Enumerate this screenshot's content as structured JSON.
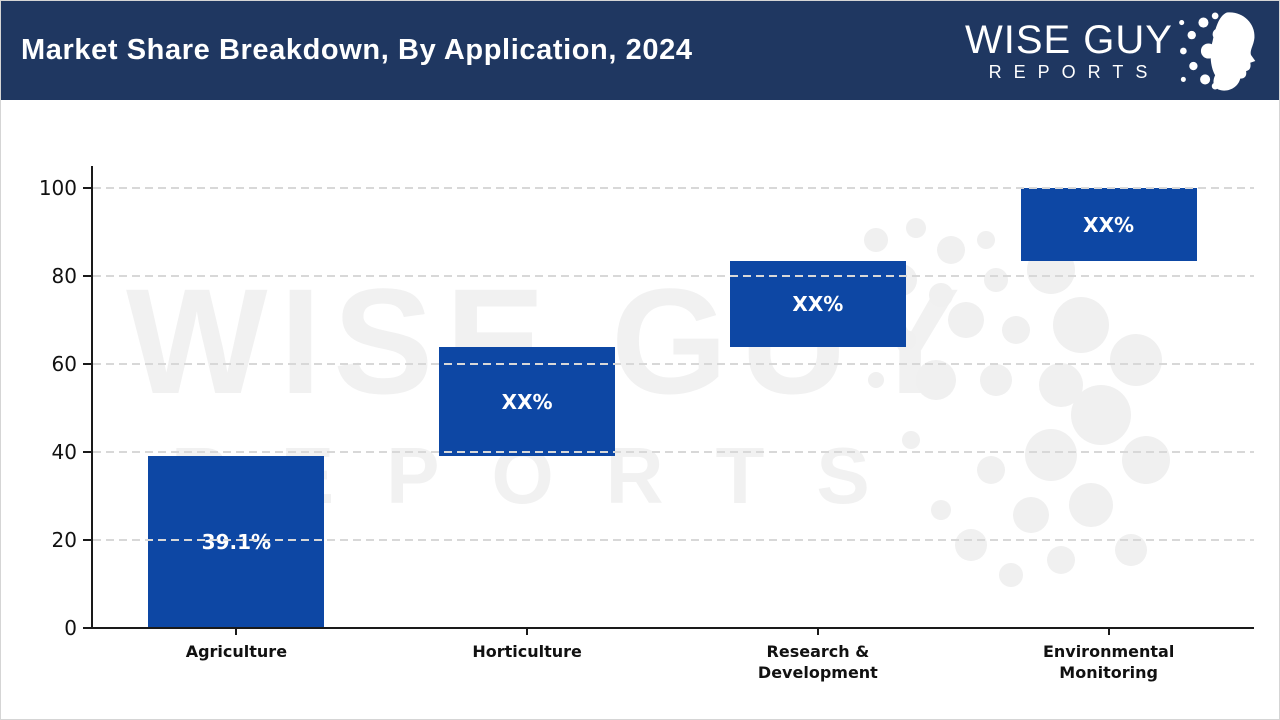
{
  "header": {
    "logo_line1": "WISE GUY",
    "logo_line2": "REPORTS"
  },
  "watermark": {
    "line1": "WISE GUY",
    "line2": "REPORTS"
  },
  "chart_data": {
    "type": "bar",
    "subtype": "floating-waterfall",
    "title": "Market Share Breakdown, By Application, 2024",
    "categories": [
      "Agriculture",
      "Horticulture",
      "Research &\nDevelopment",
      "Environmental\nMonitoring"
    ],
    "bars": [
      {
        "category": "Agriculture",
        "start": 0,
        "end": 39.1,
        "label": "39.1%"
      },
      {
        "category": "Horticulture",
        "start": 39.1,
        "end": 63.8,
        "label": "XX%"
      },
      {
        "category": "Research & Development",
        "start": 63.8,
        "end": 83.4,
        "label": "XX%"
      },
      {
        "category": "Environmental Monitoring",
        "start": 83.4,
        "end": 100,
        "label": "XX%"
      }
    ],
    "yticks": [
      0,
      20,
      40,
      60,
      80,
      100
    ],
    "ylim": [
      0,
      105
    ],
    "xlabel": "",
    "ylabel": "",
    "grid": "horizontal-dashed",
    "legend": "none",
    "colors": {
      "bar": "#0D47A4",
      "bar_label": "#FFFFFF",
      "header_bg": "#1F3761",
      "axis": "#1A1A1A",
      "gridline": "#D8D8D8",
      "watermark": "#F1F1F1"
    }
  }
}
